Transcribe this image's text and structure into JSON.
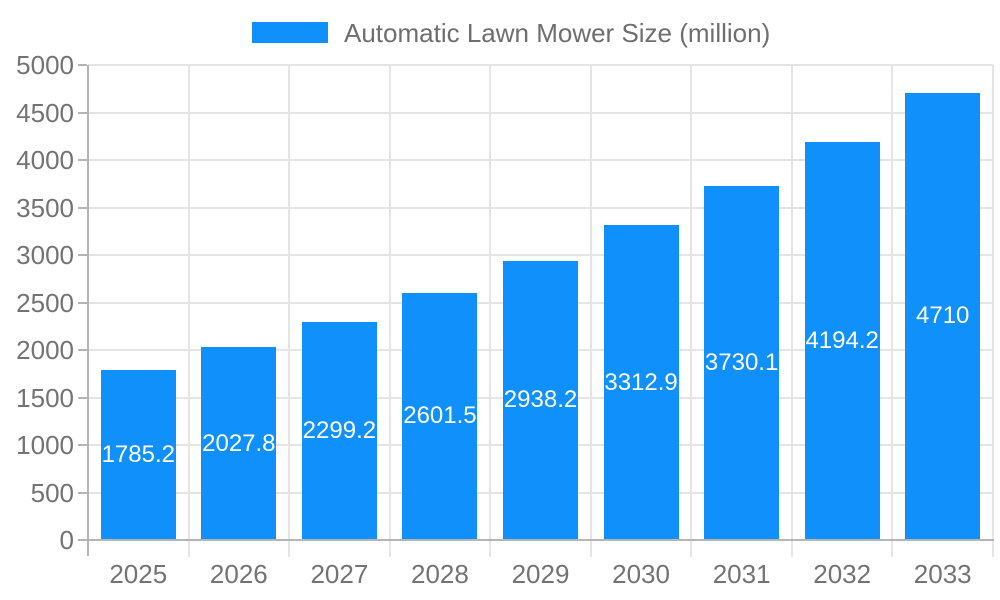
{
  "legend": {
    "label": "Automatic Lawn Mower Size (million)",
    "position": "top"
  },
  "chart_data": {
    "type": "bar",
    "title": "Automatic Lawn Mower Size (million)",
    "series_name": "Automatic Lawn Mower Size (million)",
    "categories": [
      "2025",
      "2026",
      "2027",
      "2028",
      "2029",
      "2030",
      "2031",
      "2032",
      "2033"
    ],
    "values": [
      1785.2,
      2027.8,
      2299.2,
      2601.5,
      2938.2,
      3312.9,
      3730.1,
      4194.2,
      4710
    ],
    "value_labels": [
      "1785.2",
      "2027.8",
      "2299.2",
      "2601.5",
      "2938.2",
      "3312.9",
      "3730.1",
      "4194.2",
      "4710"
    ],
    "xlabel": "",
    "ylabel": "",
    "ylim": [
      0,
      5000
    ],
    "y_ticks": [
      0,
      500,
      1000,
      1500,
      2000,
      2500,
      3000,
      3500,
      4000,
      4500,
      5000
    ],
    "grid": true,
    "legend_position": "top",
    "value_label_position": "inside-center"
  },
  "colors": {
    "bar": "#0f90fb",
    "grid": "#e5e5e5",
    "axis_line": "#b5b5b5",
    "tick": "#b5b5b5",
    "axis_label": "#737373",
    "legend_text": "#6e6e6e",
    "value_label": "#ffffff",
    "background": "#ffffff"
  }
}
